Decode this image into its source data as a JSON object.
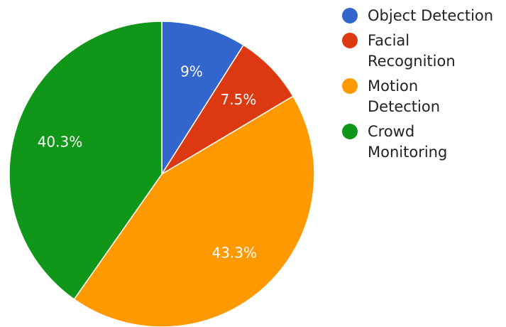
{
  "chart_data": {
    "type": "pie",
    "categories": [
      "Object Detection",
      "Facial Recognition",
      "Motion Detection",
      "Crowd Monitoring"
    ],
    "values": [
      9,
      7.5,
      43.3,
      40.3
    ],
    "labels": [
      "9%",
      "7.5%",
      "43.3%",
      "40.3%"
    ],
    "colors": [
      "#3366cc",
      "#dc3912",
      "#ff9900",
      "#109618"
    ],
    "legend": "right",
    "legend_entries": [
      "Object Detection",
      "Facial Recognition",
      "Motion Detection",
      "Crowd Monitoring"
    ]
  }
}
